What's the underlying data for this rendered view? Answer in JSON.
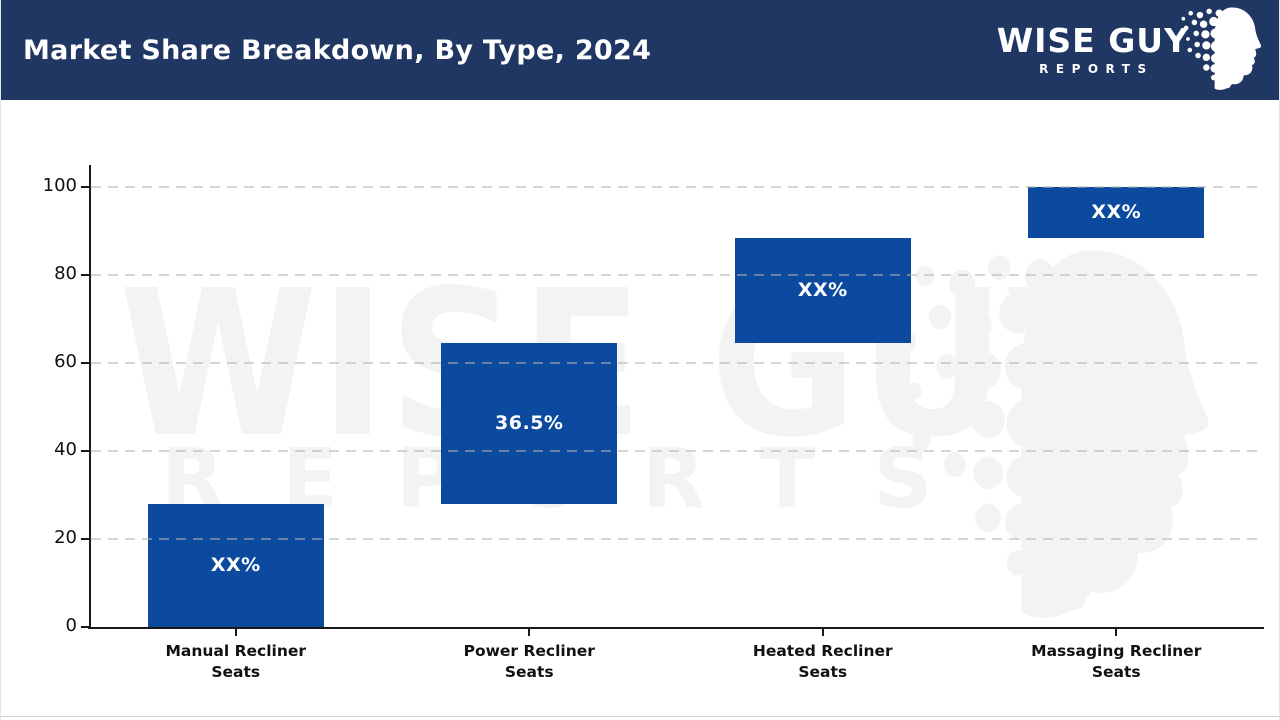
{
  "header": {
    "title": "Market Share Breakdown, By Type, 2024",
    "logo": {
      "name": "WISE GUY",
      "tagline": "REPORTS"
    }
  },
  "watermark": {
    "line1": "WISE GUY",
    "line2": "REPORTS"
  },
  "colors": {
    "header_bg": "#213763",
    "bar": "#0b4a9e",
    "bar_label": "#ffffff",
    "axis": "#1a1a1a",
    "tick_text": "#111111",
    "gridline": "#b2b2b2",
    "watermark": "#f3f3f3"
  },
  "chart_data": {
    "type": "bar",
    "variant": "waterfall-floating-segments",
    "title": "Market Share Breakdown, By Type, 2024",
    "categories": [
      "Manual Recliner Seats",
      "Power Recliner Seats",
      "Heated Recliner Seats",
      "Massaging Recliner Seats"
    ],
    "bars": [
      {
        "category": "Manual Recliner Seats",
        "start": 0,
        "end": 28,
        "label": "XX%"
      },
      {
        "category": "Power Recliner Seats",
        "start": 28,
        "end": 64.5,
        "label": "36.5%"
      },
      {
        "category": "Heated Recliner Seats",
        "start": 64.5,
        "end": 88.5,
        "label": "XX%"
      },
      {
        "category": "Massaging Recliner Seats",
        "start": 88.5,
        "end": 100,
        "label": "XX%"
      }
    ],
    "xlabel": "",
    "ylabel": "",
    "ylim": [
      0,
      100
    ],
    "yticks": [
      0,
      20,
      40,
      60,
      80,
      100
    ],
    "grid": "horizontal-dashed-over-bars",
    "legend": "none"
  }
}
